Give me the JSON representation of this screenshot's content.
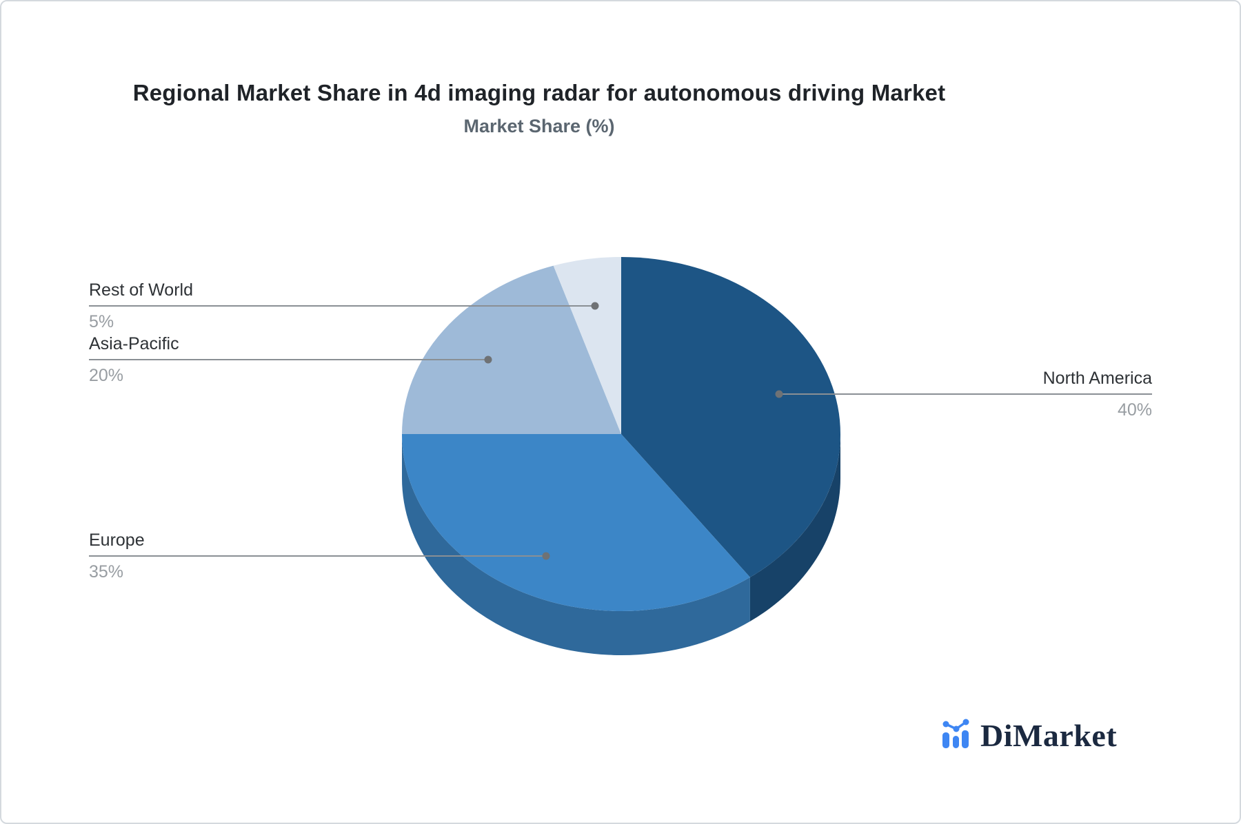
{
  "header": {
    "title": "Regional Market Share in 4d imaging radar for autonomous driving Market",
    "subtitle": "Market Share (%)"
  },
  "chart_data": {
    "type": "pie",
    "style": "3d",
    "title": "Regional Market Share in 4d imaging radar for autonomous driving Market",
    "subtitle": "Market Share (%)",
    "unit": "%",
    "labels": [
      "North America",
      "Europe",
      "Asia-Pacific",
      "Rest of World"
    ],
    "values": [
      40,
      35,
      20,
      5
    ],
    "display_values": [
      "40%",
      "35%",
      "20%",
      "5%"
    ],
    "colors": [
      "#1D5585",
      "#3C86C7",
      "#9EBAD8",
      "#DCE5F0"
    ],
    "start_position": "12-oclock",
    "direction": "clockwise",
    "legend_position": "callout-labels",
    "callout_line_color": "#8a8f94",
    "callout_dot_color": "#6f7275"
  },
  "logo": {
    "text": "DiMarket",
    "icon": "bar-line-chart-logo-icon",
    "icon_color": "#3E86F3",
    "text_color": "#1b2940"
  }
}
